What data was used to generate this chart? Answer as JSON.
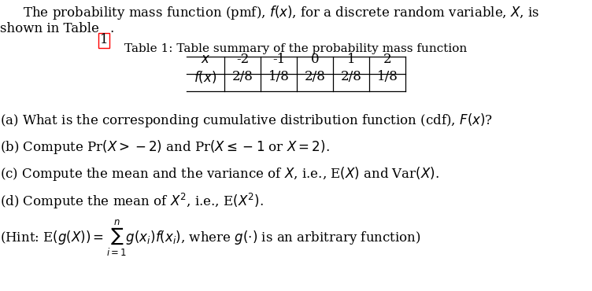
{
  "title_line1": "    The probability mass function (pmf), $f(x)$, for a discrete random variable, $X$, is",
  "title_line2": "shown in Table 1.",
  "table_caption": "Table 1: Table summary of the probability mass function",
  "x_header": "$x$",
  "x_values": [
    "-2",
    "-1",
    "0",
    "1",
    "2"
  ],
  "fx_header": "$f(x)$",
  "fx_values": [
    "2/8",
    "1/8",
    "2/8",
    "2/8",
    "1/8"
  ],
  "q_a": "(a) What is the corresponding cumulative distribution function (cdf), $F(x)$?",
  "q_b": "(b) Compute Pr$(X > -2)$ and Pr$(X \\leq -1$ or $X = 2)$.",
  "q_c": "(c) Compute the mean and the variance of $X$, i.e., E$(X)$ and Var$(X)$.",
  "q_d": "(d) Compute the mean of $X^2$, i.e., E$(X^2)$.",
  "q_hint": "(Hint: E$(g(X)) = \\sum_{i=1}^{n} g(x_i)f(x_i)$, where $g(\\cdot)$ is an arbitrary function)",
  "background_color": "#ffffff",
  "text_color": "#000000",
  "fontsize": 12,
  "small_fontsize": 11
}
